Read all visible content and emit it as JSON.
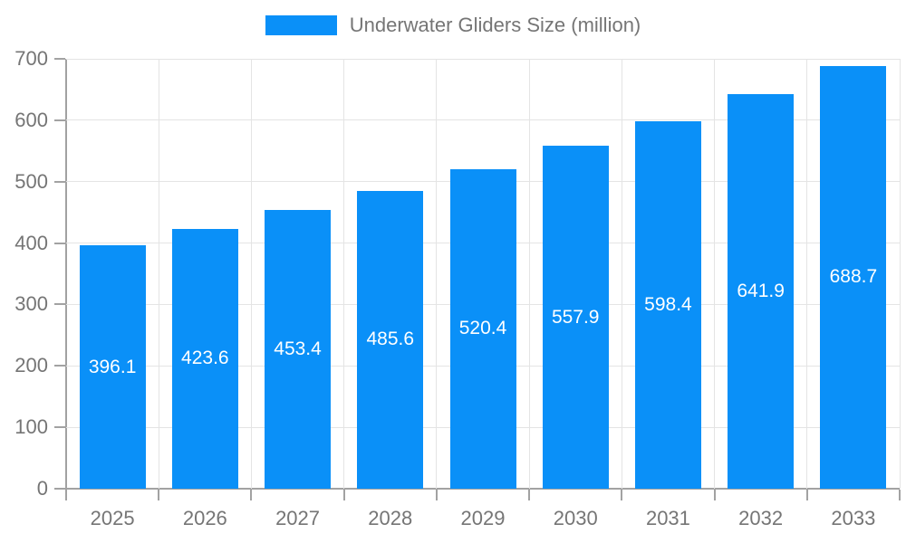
{
  "chart_data": {
    "type": "bar",
    "title": "Underwater Gliders Size (million)",
    "categories": [
      "2025",
      "2026",
      "2027",
      "2028",
      "2029",
      "2030",
      "2031",
      "2032",
      "2033"
    ],
    "values": [
      396.1,
      423.6,
      453.4,
      485.6,
      520.4,
      557.9,
      598.4,
      641.9,
      688.7
    ],
    "value_labels": [
      "396.1",
      "423.6",
      "453.4",
      "485.6",
      "520.4",
      "557.9",
      "598.4",
      "641.9",
      "688.7"
    ],
    "xlabel": "",
    "ylabel": "",
    "ylim": [
      0,
      700
    ],
    "y_ticks": [
      0,
      100,
      200,
      300,
      400,
      500,
      600,
      700
    ],
    "y_tick_labels": [
      "0",
      "100",
      "200",
      "300",
      "400",
      "500",
      "600",
      "700"
    ],
    "grid": "both",
    "legend_position": "top-center",
    "value_label_position": "inside-center"
  },
  "legend": {
    "label": "Underwater Gliders Size (million)",
    "swatch_color": "#0a90f8"
  },
  "colors": {
    "bar": "#0a90f8",
    "grid": "#e4e4e4",
    "axis": "#a2a2a2",
    "tick_text": "#757575",
    "value_text": "#ffffff",
    "background": "#ffffff"
  }
}
